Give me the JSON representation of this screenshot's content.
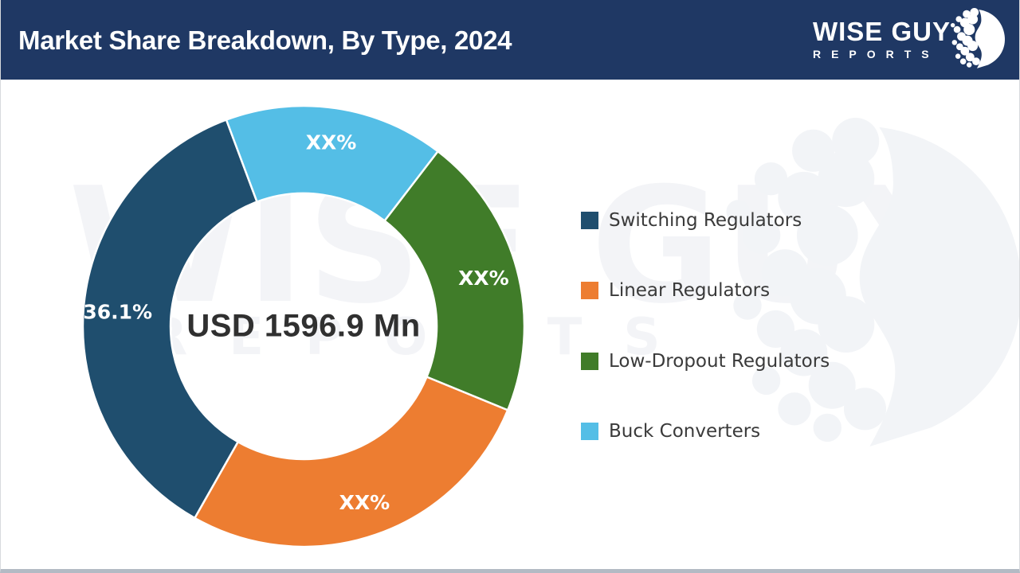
{
  "header": {
    "title": "Market Share Breakdown, By Type, 2024",
    "logo": {
      "line1": "WISE GUY",
      "line2": "REPORTS"
    }
  },
  "watermark": {
    "line1": "WISE GUY",
    "line2": "REPORTS"
  },
  "center_label": "USD 1596.9 Mn",
  "colors": {
    "header_bg": "#1F3864",
    "slice_switching": "#1F4E6E",
    "slice_linear": "#ED7D31",
    "slice_low_dropout": "#407C29",
    "slice_buck": "#54BEE6",
    "percent_label_text": "#FFFFFF",
    "center_text": "#303030",
    "legend_text": "#3A3A3A"
  },
  "legend": {
    "items": [
      {
        "label": "Switching Regulators",
        "color": "#1F4E6E"
      },
      {
        "label": "Linear Regulators",
        "color": "#ED7D31"
      },
      {
        "label": "Low-Dropout Regulators",
        "color": "#407C29"
      },
      {
        "label": "Buck Converters",
        "color": "#54BEE6"
      }
    ]
  },
  "chart_data": {
    "type": "pie",
    "subtype": "donut",
    "title": "Market Share Breakdown, By Type, 2024",
    "center_label": "USD 1596.9 Mn",
    "categories": [
      "Switching Regulators",
      "Linear Regulators",
      "Low-Dropout Regulators",
      "Buck Converters"
    ],
    "values": [
      36.1,
      27.0,
      20.8,
      16.1
    ],
    "slice_labels": [
      "36.1%",
      "XX%",
      "XX%",
      "XX%"
    ],
    "values_note": "only first slice percentage printed (36.1%); XX% slice values estimated from arc angles",
    "colors": [
      "#1F4E6E",
      "#ED7D31",
      "#407C29",
      "#54BEE6"
    ],
    "start_angle_deg": 110.5,
    "counterclockwise": true,
    "legend_position": "right"
  }
}
